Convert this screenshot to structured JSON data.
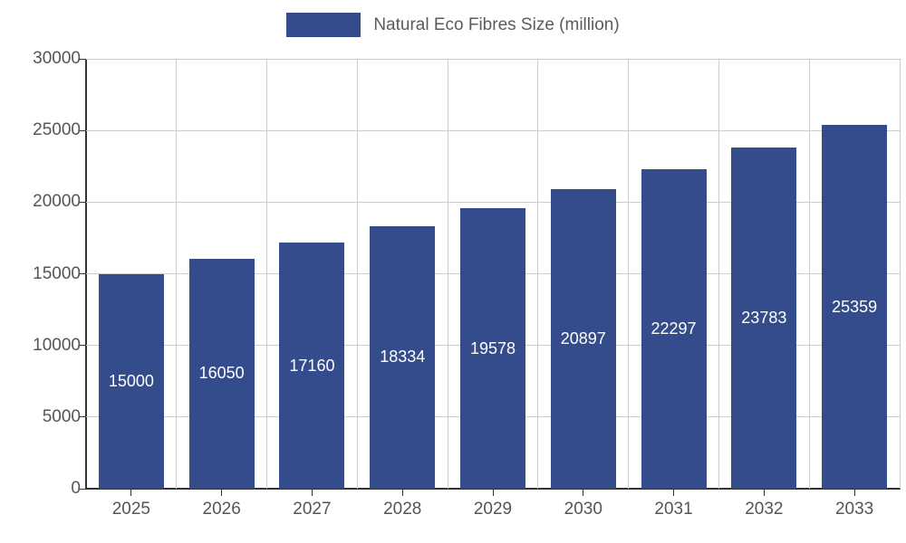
{
  "legend": {
    "title": "Natural Eco Fibres Size (million)",
    "swatch_color": "#344c8b"
  },
  "chart_data": {
    "type": "bar",
    "title": "Natural Eco Fibres Size (million)",
    "categories": [
      "2025",
      "2026",
      "2027",
      "2028",
      "2029",
      "2030",
      "2031",
      "2032",
      "2033"
    ],
    "values": [
      15000,
      16050,
      17160,
      18334,
      19578,
      20897,
      22297,
      23783,
      25359
    ],
    "xlabel": "",
    "ylabel": "",
    "ylim": [
      0,
      30000
    ],
    "ytick_interval": 5000,
    "ytick_labels": [
      "0",
      "5000",
      "10000",
      "15000",
      "20000",
      "25000",
      "30000"
    ],
    "bar_color": "#344c8b",
    "value_label_color": "#ffffff",
    "grid": true,
    "legend_position": "top"
  }
}
